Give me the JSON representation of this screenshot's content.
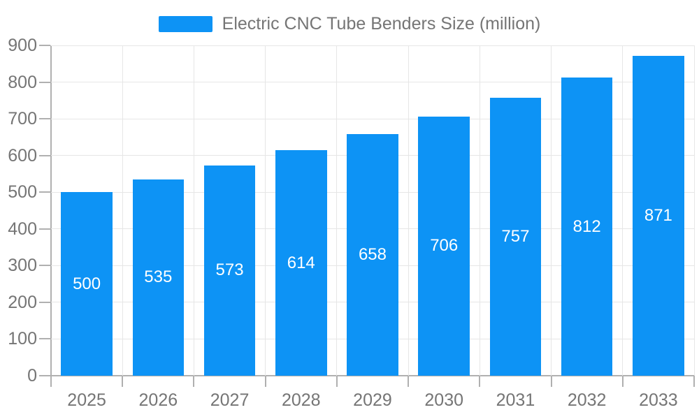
{
  "chart_data": {
    "type": "bar",
    "title": "Electric CNC Tube Benders Size (million)",
    "categories": [
      "2025",
      "2026",
      "2027",
      "2028",
      "2029",
      "2030",
      "2031",
      "2032",
      "2033"
    ],
    "series": [
      {
        "name": "Electric CNC Tube Benders Size (million)",
        "values": [
          500,
          535,
          573,
          614,
          658,
          706,
          757,
          812,
          871
        ]
      }
    ],
    "bar_labels": [
      "500",
      "535",
      "573",
      "614",
      "658",
      "706",
      "757",
      "812",
      "871"
    ],
    "xlabel": "",
    "ylabel": "",
    "ylim": [
      0,
      900
    ],
    "yticks": [
      0,
      100,
      200,
      300,
      400,
      500,
      600,
      700,
      800,
      900
    ],
    "grid": true,
    "legend_position": "top-center",
    "colors": {
      "bar": "#0d93f5",
      "axis": "#b0b0b0",
      "grid": "#e6e6e6",
      "text": "#757575",
      "bar_label": "#ffffff",
      "background": "#ffffff"
    }
  }
}
